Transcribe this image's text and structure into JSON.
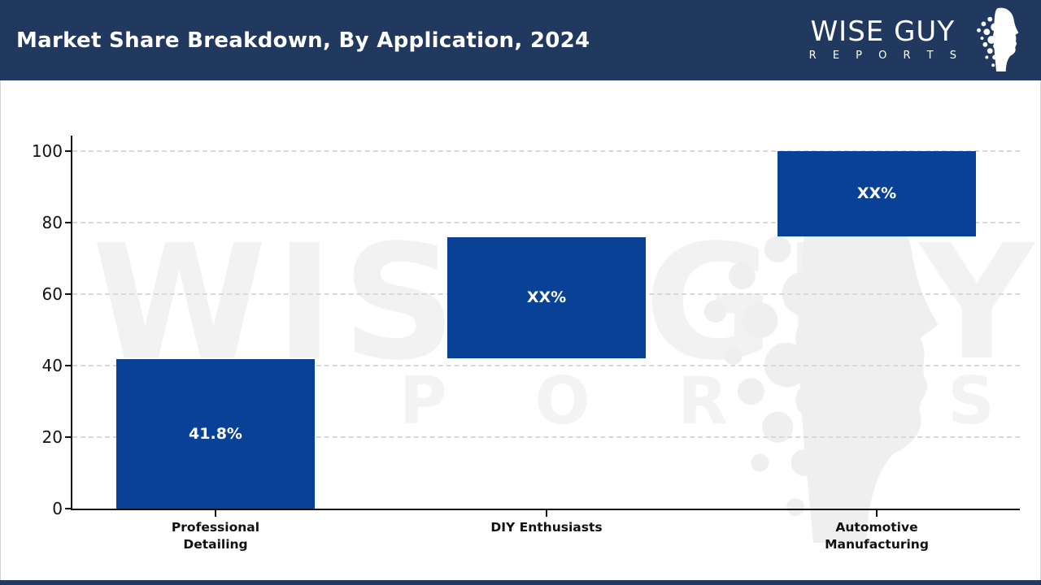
{
  "header": {
    "title": "Market Share Breakdown, By Application, 2024",
    "logo": {
      "line1": "WISE GUY",
      "line2": "R E P O R T S"
    }
  },
  "watermark": {
    "line1": "WISE GUY",
    "line2": "R E P O R T S"
  },
  "chart_data": {
    "type": "bar",
    "subtype": "floating-segment-waterfall",
    "title": "Market Share Breakdown, By Application, 2024",
    "categories": [
      "Professional Detailing",
      "DIY Enthusiasts",
      "Automotive Manufacturing"
    ],
    "segments": [
      {
        "category": "Professional Detailing",
        "category_lines": [
          "Professional",
          "Detailing"
        ],
        "start": 0,
        "end": 41.8,
        "value_label": "41.8%"
      },
      {
        "category": "DIY Enthusiasts",
        "category_lines": [
          "DIY Enthusiasts"
        ],
        "start": 41.8,
        "end": 76,
        "value_label": "XX%"
      },
      {
        "category": "Automotive Manufacturing",
        "category_lines": [
          "Automotive",
          "Manufacturing"
        ],
        "start": 76,
        "end": 100,
        "value_label": "XX%"
      }
    ],
    "ylim": [
      0,
      100
    ],
    "yticks": [
      0,
      20,
      40,
      60,
      80,
      100
    ],
    "xlabel": "",
    "ylabel": "",
    "grid": "horizontal-dashed",
    "legend": "none"
  },
  "colors": {
    "header_bg": "#21395e",
    "footer_bg": "#21395e",
    "bar": "#084196",
    "value_label": "#ffffff",
    "grid": "#d9d9d9",
    "axis": "#111111",
    "watermark": "#f2f2f2"
  }
}
